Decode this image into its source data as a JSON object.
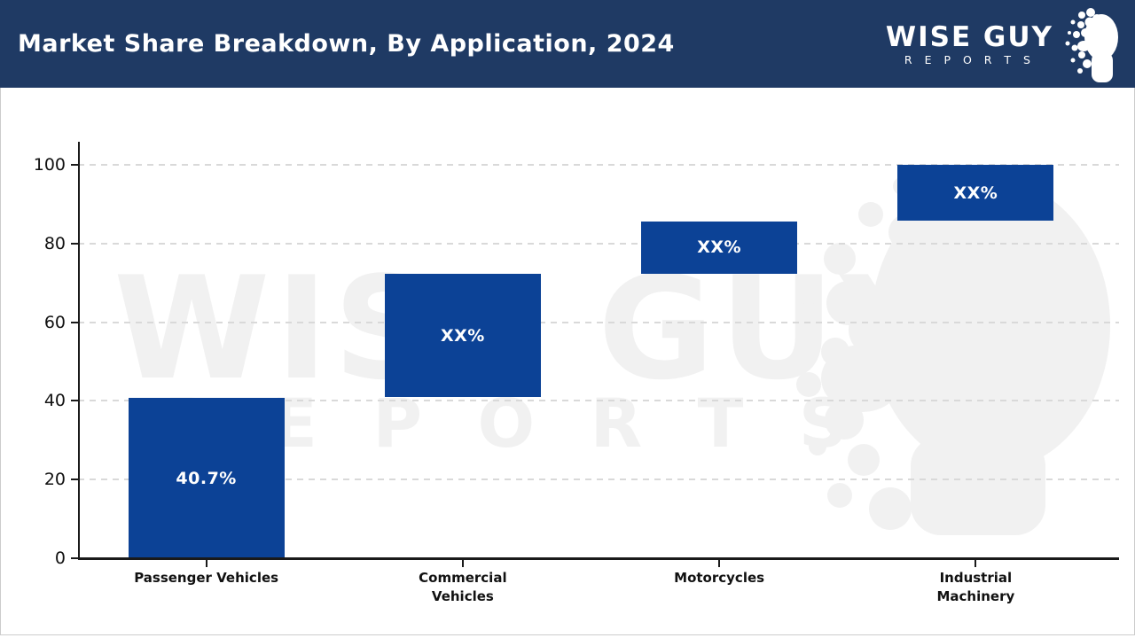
{
  "header": {
    "title": "Market Share Breakdown, By Application, 2024",
    "logo": {
      "line1": "WISE GUY",
      "line2": "R E P O R T S"
    }
  },
  "watermark": {
    "line1": "WISE GUY",
    "line2": "R E P O R T S"
  },
  "colors": {
    "header_bg": "#1f3a64",
    "bar": "#0c4296",
    "grid": "#d9d9d9",
    "axis": "#1a1a1a",
    "watermark": "#f1f1f1",
    "bar_label_text": "#ffffff"
  },
  "chart_data": {
    "type": "bar",
    "subtype": "waterfall",
    "title": "Market Share Breakdown, By Application, 2024",
    "xlabel": "",
    "ylabel": "",
    "categories": [
      "Passenger Vehicles",
      "Commercial\nVehicles",
      "Motorcycles",
      "Industrial\nMachinery"
    ],
    "segments": [
      {
        "category": "Passenger Vehicles",
        "start": 0,
        "end": 40.7,
        "value_label": "40.7%"
      },
      {
        "category": "Commercial Vehicles",
        "start": 41.0,
        "end": 72.2,
        "value_label": "XX%"
      },
      {
        "category": "Motorcycles",
        "start": 72.4,
        "end": 85.5,
        "value_label": "XX%"
      },
      {
        "category": "Industrial Machinery",
        "start": 85.7,
        "end": 100,
        "value_label": "XX%"
      }
    ],
    "y_ticks": [
      0,
      20,
      40,
      60,
      80,
      100
    ],
    "ylim": [
      0,
      106
    ],
    "grid": "dashed-horizontal",
    "legend": "none"
  }
}
